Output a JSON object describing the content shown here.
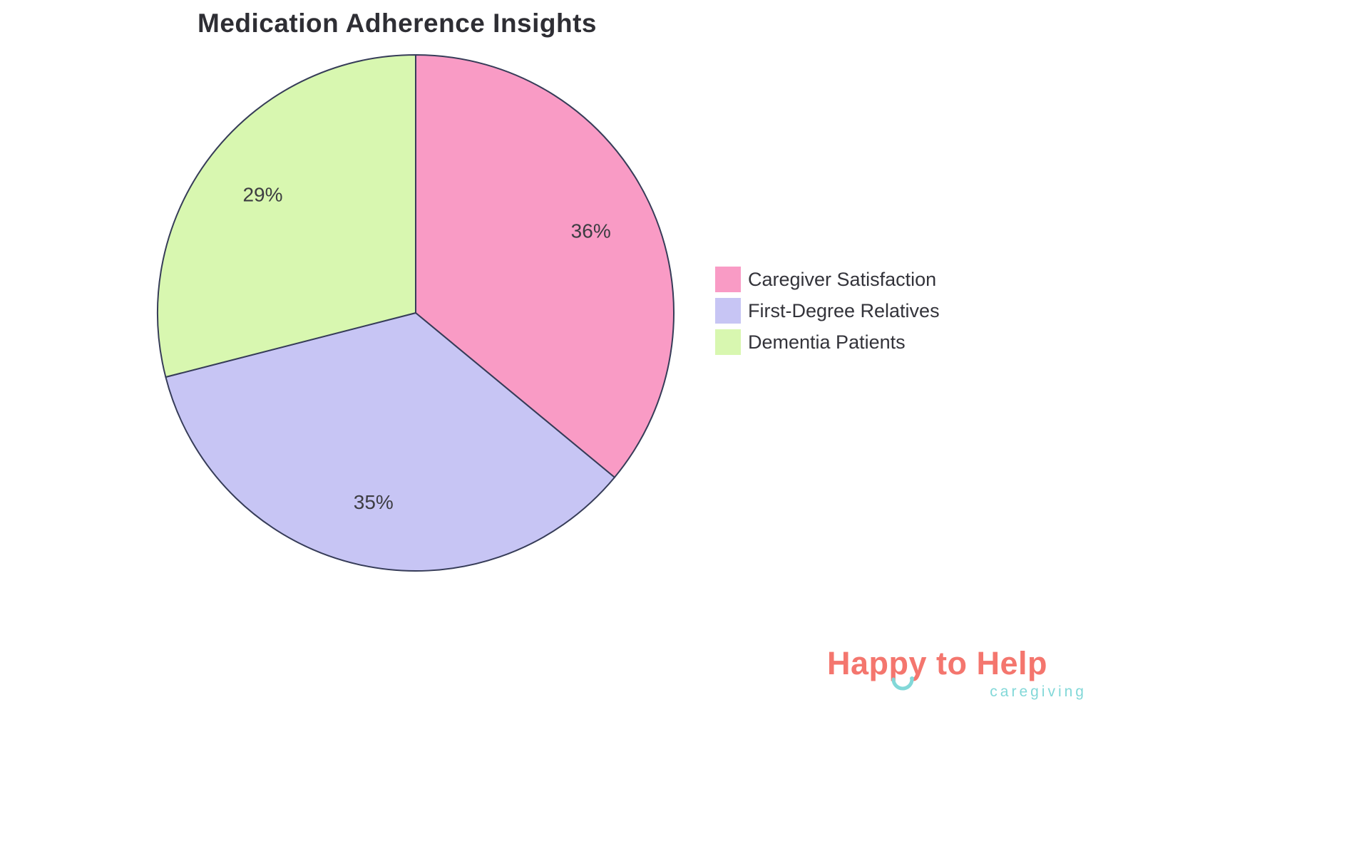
{
  "chart_data": {
    "type": "pie",
    "title": "Medication Adherence Insights",
    "slices": [
      {
        "label": "Caregiver Satisfaction",
        "value": 36,
        "pct_label": "36%",
        "color": "#F99BC5"
      },
      {
        "label": "First-Degree Relatives",
        "value": 35,
        "pct_label": "35%",
        "color": "#C7C5F4"
      },
      {
        "label": "Dementia Patients",
        "value": 29,
        "pct_label": "29%",
        "color": "#D8F7B0"
      }
    ],
    "start_angle_deg": 0,
    "direction": "clockwise",
    "stroke_color": "#363c58",
    "label_color": "#3d3d42",
    "legend_position": "right"
  },
  "legend": {
    "items": [
      {
        "label": "Caregiver Satisfaction",
        "color": "#F99BC5"
      },
      {
        "label": "First-Degree Relatives",
        "color": "#C7C5F4"
      },
      {
        "label": "Dementia Patients",
        "color": "#D8F7B0"
      }
    ]
  },
  "logo": {
    "text": "Happy to Help",
    "subtext": "caregiving",
    "text_color": "#F4766E",
    "subtext_color": "#82D8D8",
    "icon": "smile-icon"
  }
}
